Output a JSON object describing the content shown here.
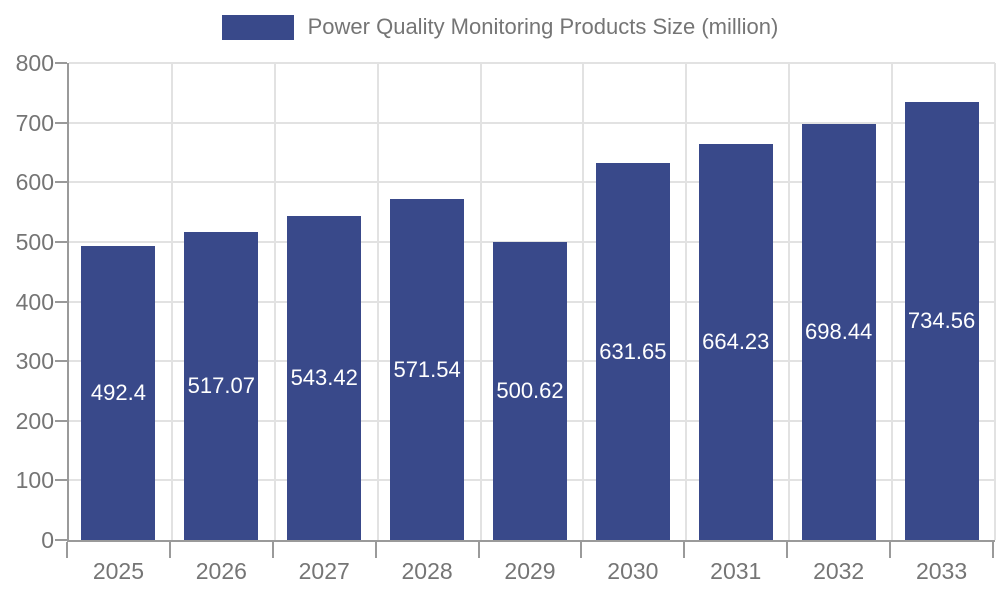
{
  "chart_data": {
    "type": "bar",
    "title": "Power Quality Monitoring Products Size (million)",
    "categories": [
      "2025",
      "2026",
      "2027",
      "2028",
      "2029",
      "2030",
      "2031",
      "2032",
      "2033"
    ],
    "values": [
      492.4,
      517.07,
      543.42,
      571.54,
      500.62,
      631.65,
      664.23,
      698.44,
      734.56
    ],
    "xlabel": "",
    "ylabel": "",
    "ylim": [
      0,
      800
    ],
    "ytick_step": 100,
    "grid": true,
    "legend_position": "top-center",
    "colors": {
      "bar": "#39498A",
      "data_label": "#ffffff",
      "axis_text": "#757575",
      "axis_line": "#9a9a9a",
      "gridline": "#e2e2e2",
      "background": "#ffffff"
    }
  }
}
